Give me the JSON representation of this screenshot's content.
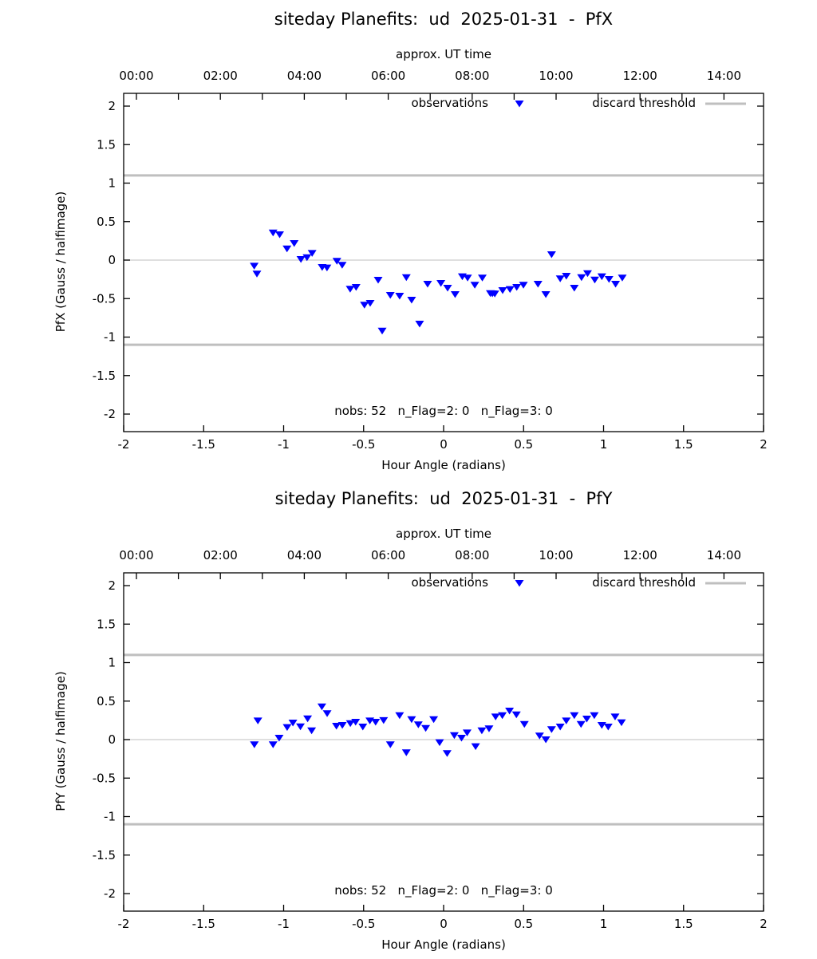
{
  "chart_data": [
    {
      "type": "scatter",
      "title": "siteday Planefits:  ud  2025-01-31  -  PfX",
      "x2label": "approx. UT time",
      "x2_tick_labels": [
        "00:00",
        "02:00",
        "04:00",
        "06:00",
        "08:00",
        "10:00",
        "12:00",
        "14:00"
      ],
      "xlabel": "Hour Angle (radians)",
      "x_tick_labels": [
        "-2",
        "-1.5",
        "-1",
        "-0.5",
        "0",
        "0.5",
        "1",
        "1.5",
        "2"
      ],
      "x_tick_values": [
        -2,
        -1.5,
        -1,
        -0.5,
        0,
        0.5,
        1,
        1.5,
        2
      ],
      "ylabel": "PfX (Gauss / halfimage)",
      "y_tick_labels": [
        "2",
        "1.5",
        "1",
        "0.5",
        "0",
        "-0.5",
        "-1",
        "-1.5",
        "-2"
      ],
      "y_tick_values": [
        2,
        1.5,
        1,
        0.5,
        0,
        -0.5,
        -1,
        -1.5,
        -2
      ],
      "xlim": [
        -2,
        2
      ],
      "ylim": [
        -2.2,
        2.2
      ],
      "grid": false,
      "legend_position": "top-inside",
      "legend": {
        "observations_label": "observations",
        "threshold_label": "discard threshold"
      },
      "marker": "triangle-down",
      "colors": {
        "observations": "#0000ff",
        "threshold": "#bfbfbf",
        "zero_line": "#cccccc"
      },
      "discard_threshold_values": [
        1.1,
        -1.1
      ],
      "zero_line": true,
      "stats_text": "nobs: 52   n_Flag=2: 0   n_Flag=3: 0",
      "nobs": 52,
      "n_flag2": 0,
      "n_flag3": 0,
      "points": [
        [
          -1.184,
          -0.076
        ],
        [
          -1.167,
          -0.179
        ],
        [
          -1.066,
          0.355
        ],
        [
          -1.025,
          0.332
        ],
        [
          -0.979,
          0.148
        ],
        [
          -0.934,
          0.218
        ],
        [
          -0.892,
          0.01
        ],
        [
          -0.854,
          0.034
        ],
        [
          -0.822,
          0.09
        ],
        [
          -0.759,
          -0.093
        ],
        [
          -0.729,
          -0.1
        ],
        [
          -0.667,
          -0.013
        ],
        [
          -0.634,
          -0.065
        ],
        [
          -0.584,
          -0.376
        ],
        [
          -0.547,
          -0.352
        ],
        [
          -0.495,
          -0.583
        ],
        [
          -0.459,
          -0.559
        ],
        [
          -0.409,
          -0.259
        ],
        [
          -0.384,
          -0.92
        ],
        [
          -0.333,
          -0.456
        ],
        [
          -0.275,
          -0.466
        ],
        [
          -0.233,
          -0.225
        ],
        [
          -0.2,
          -0.518
        ],
        [
          -0.15,
          -0.829
        ],
        [
          -0.1,
          -0.311
        ],
        [
          -0.017,
          -0.3
        ],
        [
          0.025,
          -0.363
        ],
        [
          0.072,
          -0.446
        ],
        [
          0.117,
          -0.214
        ],
        [
          0.15,
          -0.231
        ],
        [
          0.195,
          -0.324
        ],
        [
          0.242,
          -0.231
        ],
        [
          0.292,
          -0.432
        ],
        [
          0.305,
          -0.435
        ],
        [
          0.32,
          -0.438
        ],
        [
          0.369,
          -0.394
        ],
        [
          0.415,
          -0.38
        ],
        [
          0.457,
          -0.352
        ],
        [
          0.499,
          -0.324
        ],
        [
          0.59,
          -0.311
        ],
        [
          0.639,
          -0.446
        ],
        [
          0.675,
          0.073
        ],
        [
          0.729,
          -0.241
        ],
        [
          0.767,
          -0.207
        ],
        [
          0.817,
          -0.363
        ],
        [
          0.862,
          -0.225
        ],
        [
          0.9,
          -0.173
        ],
        [
          0.945,
          -0.256
        ],
        [
          0.989,
          -0.214
        ],
        [
          1.034,
          -0.249
        ],
        [
          1.075,
          -0.311
        ],
        [
          1.117,
          -0.231
        ]
      ]
    },
    {
      "type": "scatter",
      "title": "siteday Planefits:  ud  2025-01-31  -  PfY",
      "x2label": "approx. UT time",
      "x2_tick_labels": [
        "00:00",
        "02:00",
        "04:00",
        "06:00",
        "08:00",
        "10:00",
        "12:00",
        "14:00"
      ],
      "xlabel": "Hour Angle (radians)",
      "x_tick_labels": [
        "-2",
        "-1.5",
        "-1",
        "-0.5",
        "0",
        "0.5",
        "1",
        "1.5",
        "2"
      ],
      "x_tick_values": [
        -2,
        -1.5,
        -1,
        -0.5,
        0,
        0.5,
        1,
        1.5,
        2
      ],
      "ylabel": "PfY (Gauss / halfimage)",
      "y_tick_labels": [
        "2",
        "1.5",
        "1",
        "0.5",
        "0",
        "-0.5",
        "-1",
        "-1.5",
        "-2"
      ],
      "y_tick_values": [
        2,
        1.5,
        1,
        0.5,
        0,
        -0.5,
        -1,
        -1.5,
        -2
      ],
      "xlim": [
        -2,
        2
      ],
      "ylim": [
        -2.2,
        2.2
      ],
      "grid": false,
      "legend_position": "top-inside",
      "legend": {
        "observations_label": "observations",
        "threshold_label": "discard threshold"
      },
      "marker": "triangle-down",
      "colors": {
        "observations": "#0000ff",
        "threshold": "#bfbfbf",
        "zero_line": "#cccccc"
      },
      "discard_threshold_values": [
        1.1,
        -1.1
      ],
      "zero_line": true,
      "stats_text": "nobs: 52   n_Flag=2: 0   n_Flag=3: 0",
      "nobs": 52,
      "n_flag2": 0,
      "n_flag3": 0,
      "points": [
        [
          -1.183,
          -0.065
        ],
        [
          -1.161,
          0.245
        ],
        [
          -1.066,
          -0.065
        ],
        [
          -1.028,
          0.021
        ],
        [
          -0.978,
          0.159
        ],
        [
          -0.942,
          0.218
        ],
        [
          -0.895,
          0.169
        ],
        [
          -0.85,
          0.272
        ],
        [
          -0.825,
          0.117
        ],
        [
          -0.761,
          0.428
        ],
        [
          -0.728,
          0.339
        ],
        [
          -0.67,
          0.176
        ],
        [
          -0.633,
          0.187
        ],
        [
          -0.583,
          0.21
        ],
        [
          -0.55,
          0.228
        ],
        [
          -0.505,
          0.166
        ],
        [
          -0.461,
          0.245
        ],
        [
          -0.425,
          0.228
        ],
        [
          -0.375,
          0.25
        ],
        [
          -0.333,
          -0.065
        ],
        [
          -0.275,
          0.314
        ],
        [
          -0.233,
          -0.169
        ],
        [
          -0.2,
          0.262
        ],
        [
          -0.158,
          0.194
        ],
        [
          -0.112,
          0.148
        ],
        [
          -0.062,
          0.262
        ],
        [
          -0.025,
          -0.038
        ],
        [
          0.022,
          -0.179
        ],
        [
          0.067,
          0.055
        ],
        [
          0.112,
          0.021
        ],
        [
          0.147,
          0.09
        ],
        [
          0.2,
          -0.09
        ],
        [
          0.239,
          0.117
        ],
        [
          0.284,
          0.142
        ],
        [
          0.325,
          0.297
        ],
        [
          0.367,
          0.314
        ],
        [
          0.412,
          0.373
        ],
        [
          0.455,
          0.324
        ],
        [
          0.505,
          0.2
        ],
        [
          0.6,
          0.049
        ],
        [
          0.639,
          0.0
        ],
        [
          0.675,
          0.132
        ],
        [
          0.729,
          0.166
        ],
        [
          0.767,
          0.245
        ],
        [
          0.817,
          0.314
        ],
        [
          0.859,
          0.2
        ],
        [
          0.895,
          0.269
        ],
        [
          0.942,
          0.314
        ],
        [
          0.989,
          0.187
        ],
        [
          1.029,
          0.166
        ],
        [
          1.072,
          0.297
        ],
        [
          1.112,
          0.221
        ]
      ]
    }
  ]
}
